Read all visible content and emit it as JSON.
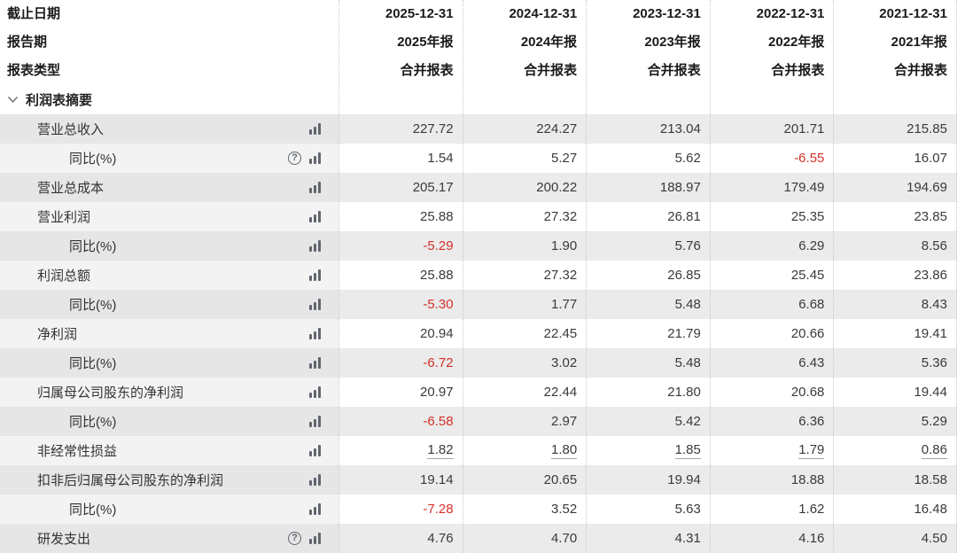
{
  "colors": {
    "negative": "#d5302a",
    "icon": "#60656e",
    "separator": "#c9c9c9",
    "row_dark_label": "#e6e6e6",
    "row_dark_value": "#ebebeb",
    "row_light_label": "#f3f3f3",
    "row_light_value": "#ffffff",
    "header_text": "#1a1a1a"
  },
  "header": {
    "field_labels": [
      "截止日期",
      "报告期",
      "报表类型"
    ],
    "columns": [
      {
        "date": "2025-12-31",
        "period": "2025年报",
        "type": "合并报表"
      },
      {
        "date": "2024-12-31",
        "period": "2024年报",
        "type": "合并报表"
      },
      {
        "date": "2023-12-31",
        "period": "2023年报",
        "type": "合并报表"
      },
      {
        "date": "2022-12-31",
        "period": "2022年报",
        "type": "合并报表"
      },
      {
        "date": "2021-12-31",
        "period": "2021年报",
        "type": "合并报表"
      }
    ]
  },
  "section": {
    "title": "利润表摘要",
    "chevron_icon": "chevron-down"
  },
  "rows": [
    {
      "label": "营业总收入",
      "indent": 1,
      "help": false,
      "chart": true,
      "underline": false,
      "values": [
        "227.72",
        "224.27",
        "213.04",
        "201.71",
        "215.85"
      ]
    },
    {
      "label": "同比(%)",
      "indent": 2,
      "help": true,
      "chart": true,
      "underline": false,
      "values": [
        "1.54",
        "5.27",
        "5.62",
        "-6.55",
        "16.07"
      ]
    },
    {
      "label": "营业总成本",
      "indent": 1,
      "help": false,
      "chart": true,
      "underline": false,
      "values": [
        "205.17",
        "200.22",
        "188.97",
        "179.49",
        "194.69"
      ]
    },
    {
      "label": "营业利润",
      "indent": 1,
      "help": false,
      "chart": true,
      "underline": false,
      "values": [
        "25.88",
        "27.32",
        "26.81",
        "25.35",
        "23.85"
      ]
    },
    {
      "label": "同比(%)",
      "indent": 2,
      "help": false,
      "chart": true,
      "underline": false,
      "values": [
        "-5.29",
        "1.90",
        "5.76",
        "6.29",
        "8.56"
      ]
    },
    {
      "label": "利润总额",
      "indent": 1,
      "help": false,
      "chart": true,
      "underline": false,
      "values": [
        "25.88",
        "27.32",
        "26.85",
        "25.45",
        "23.86"
      ]
    },
    {
      "label": "同比(%)",
      "indent": 2,
      "help": false,
      "chart": true,
      "underline": false,
      "values": [
        "-5.30",
        "1.77",
        "5.48",
        "6.68",
        "8.43"
      ]
    },
    {
      "label": "净利润",
      "indent": 1,
      "help": false,
      "chart": true,
      "underline": false,
      "values": [
        "20.94",
        "22.45",
        "21.79",
        "20.66",
        "19.41"
      ]
    },
    {
      "label": "同比(%)",
      "indent": 2,
      "help": false,
      "chart": true,
      "underline": false,
      "values": [
        "-6.72",
        "3.02",
        "5.48",
        "6.43",
        "5.36"
      ]
    },
    {
      "label": "归属母公司股东的净利润",
      "indent": 1,
      "help": false,
      "chart": true,
      "underline": false,
      "values": [
        "20.97",
        "22.44",
        "21.80",
        "20.68",
        "19.44"
      ]
    },
    {
      "label": "同比(%)",
      "indent": 2,
      "help": false,
      "chart": true,
      "underline": false,
      "values": [
        "-6.58",
        "2.97",
        "5.42",
        "6.36",
        "5.29"
      ]
    },
    {
      "label": "非经常性损益",
      "indent": 1,
      "help": false,
      "chart": true,
      "underline": true,
      "values": [
        "1.82",
        "1.80",
        "1.85",
        "1.79",
        "0.86"
      ]
    },
    {
      "label": "扣非后归属母公司股东的净利润",
      "indent": 1,
      "help": false,
      "chart": true,
      "underline": false,
      "values": [
        "19.14",
        "20.65",
        "19.94",
        "18.88",
        "18.58"
      ]
    },
    {
      "label": "同比(%)",
      "indent": 2,
      "help": false,
      "chart": true,
      "underline": false,
      "values": [
        "-7.28",
        "3.52",
        "5.63",
        "1.62",
        "16.48"
      ]
    },
    {
      "label": "研发支出",
      "indent": 1,
      "help": true,
      "chart": true,
      "underline": false,
      "values": [
        "4.76",
        "4.70",
        "4.31",
        "4.16",
        "4.50"
      ]
    }
  ]
}
